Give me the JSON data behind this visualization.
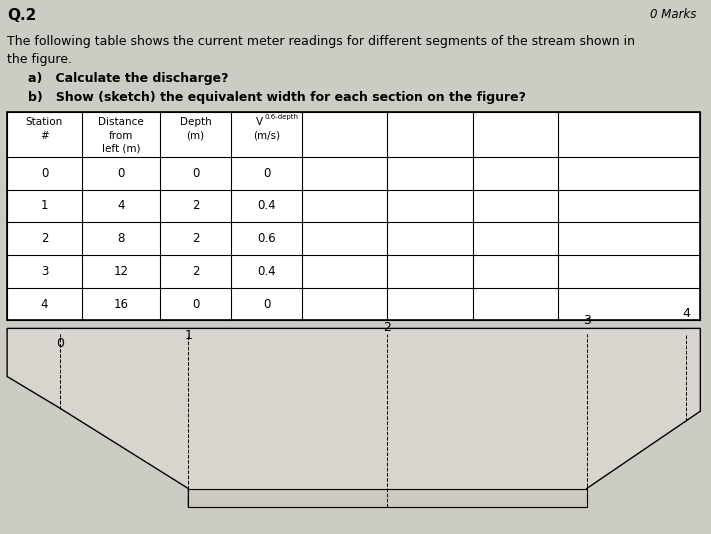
{
  "title_q": "Q.2",
  "marks": "0 Marks",
  "description_line1": "The following table shows the current meter readings for different segments of the stream shown in",
  "description_line2": "the figure.",
  "question_a": "a)   Calculate the discharge?",
  "question_b": "b)   Show (sketch) the equivalent width for each section on the figure?",
  "header_line1": [
    "Station",
    "Distance",
    "Depth",
    "V0.6-depth",
    "",
    "",
    "",
    ""
  ],
  "header_line2": [
    "#",
    "from",
    "(m)",
    "(m/s)",
    "",
    "",
    "",
    ""
  ],
  "header_line3": [
    "",
    "left (m)",
    "",
    "",
    "",
    "",
    "",
    ""
  ],
  "table_data": [
    [
      0,
      0,
      0,
      0
    ],
    [
      1,
      4,
      2,
      0.4
    ],
    [
      2,
      8,
      2,
      0.6
    ],
    [
      3,
      12,
      2,
      0.4
    ],
    [
      4,
      16,
      0,
      0
    ]
  ],
  "stream_labels": [
    "0",
    "1",
    "2",
    "3",
    "4"
  ],
  "bg_color": "#cccbc4",
  "table_bg": "#e8e6e0",
  "white": "#ffffff"
}
